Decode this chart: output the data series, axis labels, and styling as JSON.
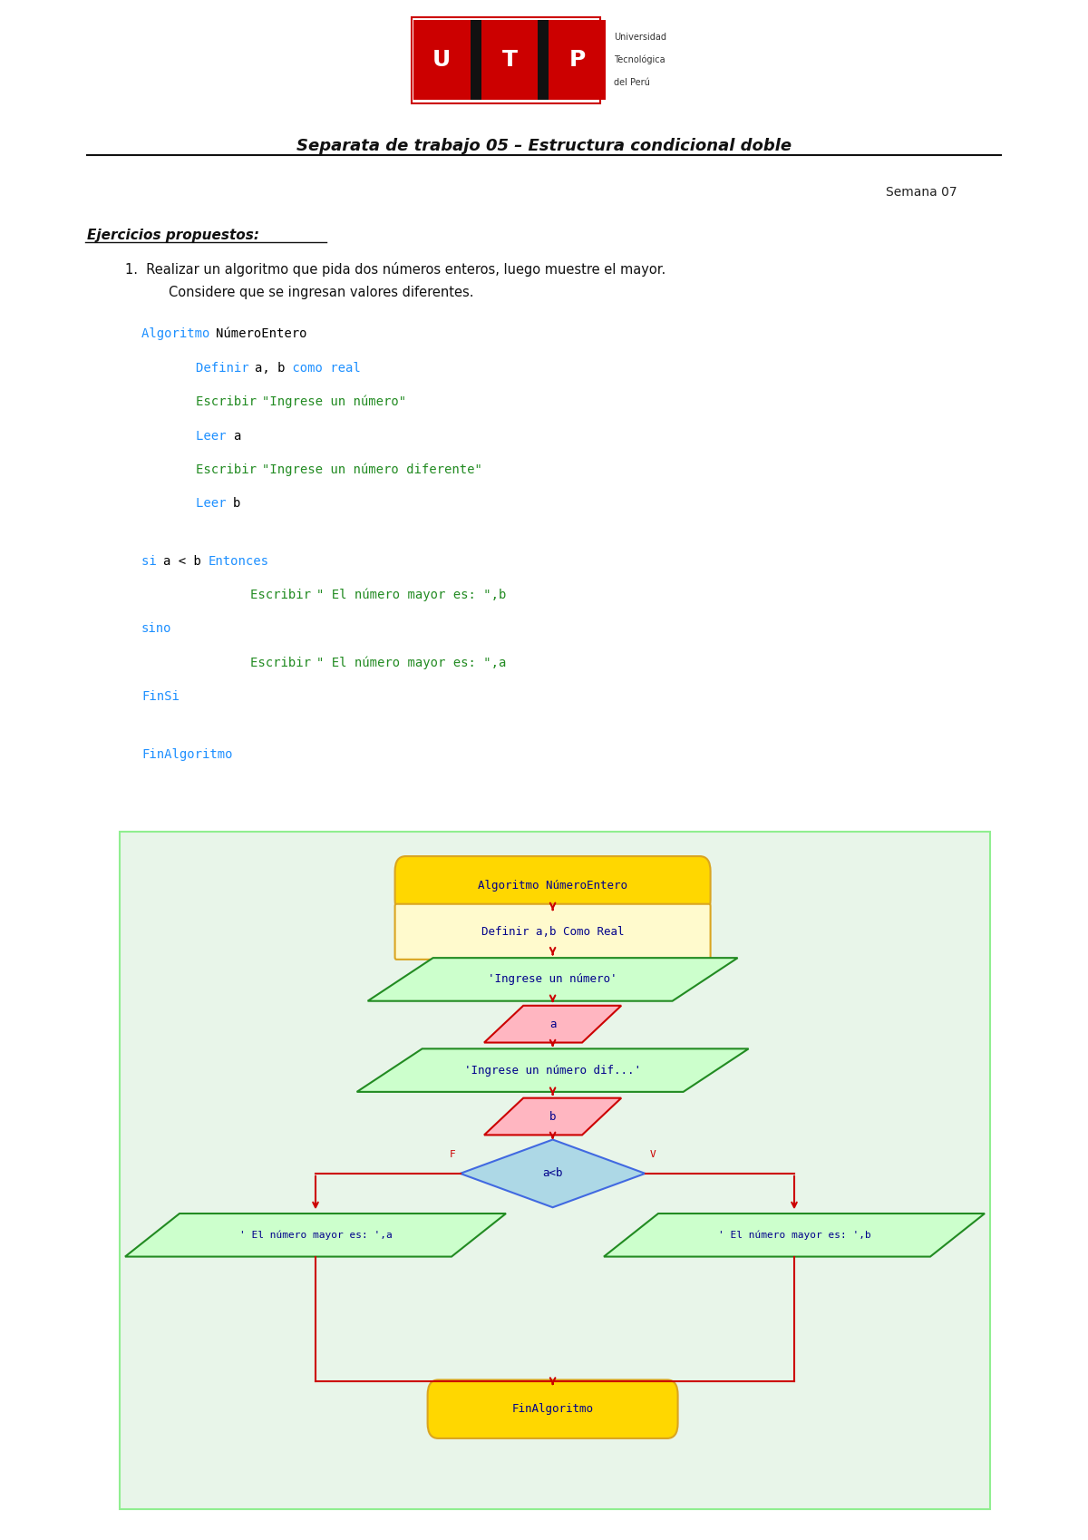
{
  "page_bg": "#ffffff",
  "title_text": "Separata de trabajo 05 – Estructura condicional doble",
  "semana_text": "Semana 07",
  "ejercicios_label": "Ejercicios propuestos:",
  "item1_line1": "Realizar un algoritmo que pida dos números enteros, luego muestre el mayor.",
  "item1_line2": "Considere que se ingresan valores diferentes.",
  "flowchart_bg": "#e8f5e9",
  "flowchart_border": "#90EE90",
  "fc_title_text": "Algoritmo NúmeroEntero",
  "fc_def_text": "Definir a,b Como Real",
  "fc_write1_text": "'Ingrese un número'",
  "fc_read_a_text": "a",
  "fc_write2_text": "'Ingrese un número dif...'",
  "fc_read_b_text": "b",
  "fc_cond_text": "a<b",
  "fc_false_text": "' El número mayor es: ',a",
  "fc_true_text": "' El número mayor es: ',b",
  "fc_end_text": "FinAlgoritmo",
  "arrow_color": "#cc0000",
  "shape_border_color": "#cc0000",
  "oval_fill": "#FFD700",
  "oval_border": "#DAA520",
  "rect_fill": "#FFFACD",
  "rect_border": "#DAA520",
  "parallelogram_fill": "#ccffcc",
  "parallelogram_border": "#228B22",
  "rhombus_fill": "#add8e6",
  "rhombus_border": "#4169E1",
  "input_fill": "#FFB6C1",
  "input_border": "#cc0000",
  "text_color_fc": "#00008B",
  "pseudo_lines": [
    {
      "indent": 0.13,
      "segments": [
        [
          "Algoritmo ",
          "#1E90FF"
        ],
        [
          "NúmeroEntero",
          "#000000"
        ]
      ]
    },
    {
      "indent": 0.18,
      "segments": [
        [
          "Definir ",
          "#1E90FF"
        ],
        [
          "a, b",
          "#000000"
        ],
        [
          " como real",
          "#1E90FF"
        ]
      ]
    },
    {
      "indent": 0.18,
      "segments": [
        [
          "Escribir ",
          "#228B22"
        ],
        [
          "\"Ingrese un número\"",
          "#228B22"
        ]
      ]
    },
    {
      "indent": 0.18,
      "segments": [
        [
          "Leer ",
          "#1E90FF"
        ],
        [
          "a",
          "#000000"
        ]
      ]
    },
    {
      "indent": 0.18,
      "segments": [
        [
          "Escribir ",
          "#228B22"
        ],
        [
          "\"Ingrese un número diferente\"",
          "#228B22"
        ]
      ]
    },
    {
      "indent": 0.18,
      "segments": [
        [
          "Leer ",
          "#1E90FF"
        ],
        [
          "b",
          "#000000"
        ]
      ]
    },
    {
      "indent": null,
      "segments": null
    },
    {
      "indent": 0.13,
      "segments": [
        [
          "si ",
          "#1E90FF"
        ],
        [
          "a < b ",
          "#000000"
        ],
        [
          "Entonces",
          "#1E90FF"
        ]
      ]
    },
    {
      "indent": 0.23,
      "segments": [
        [
          "Escribir ",
          "#228B22"
        ],
        [
          "\" El número mayor es: \",b",
          "#228B22"
        ]
      ]
    },
    {
      "indent": 0.13,
      "segments": [
        [
          "sino",
          "#1E90FF"
        ]
      ]
    },
    {
      "indent": 0.23,
      "segments": [
        [
          "Escribir ",
          "#228B22"
        ],
        [
          "\" El número mayor es: \",a",
          "#228B22"
        ]
      ]
    },
    {
      "indent": 0.13,
      "segments": [
        [
          "FinSi",
          "#1E90FF"
        ]
      ]
    },
    {
      "indent": null,
      "segments": null
    },
    {
      "indent": 0.13,
      "segments": [
        [
          "FinAlgoritmo",
          "#1E90FF"
        ]
      ]
    }
  ]
}
